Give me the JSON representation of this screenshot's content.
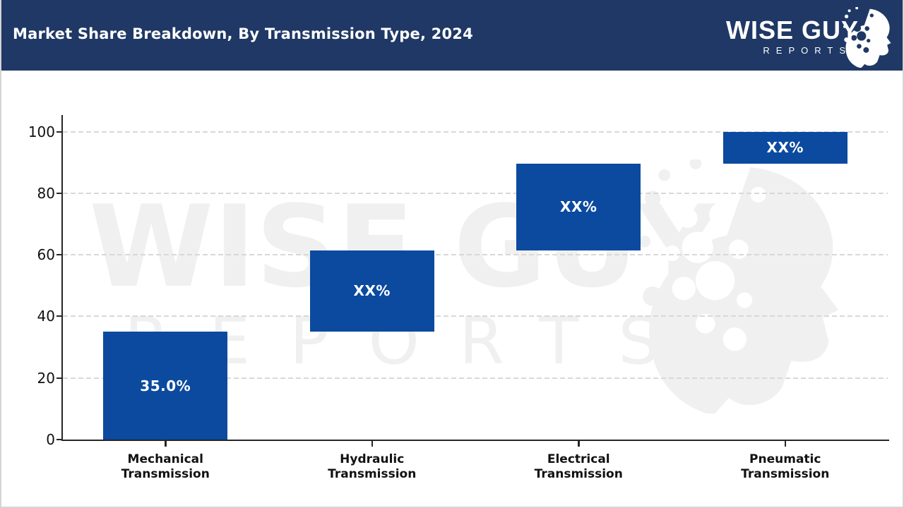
{
  "header": {
    "title": "Market Share Breakdown, By Transmission Type, 2024",
    "logo": {
      "line1": "WISE GUY",
      "line2": "REPORTS"
    }
  },
  "watermark": {
    "line1": "WISE GUY",
    "line2": "REPORTS"
  },
  "colors": {
    "header_bg": "#1f3865",
    "bar": "#0b4a9f",
    "grid": "#d8d8d8",
    "axis": "#262626",
    "bar_label": "#ffffff",
    "watermark": "#f0f0f1",
    "page_border": "#d5d5d5"
  },
  "chart_data": {
    "type": "bar",
    "subtype": "waterfall",
    "title": "Market Share Breakdown, By Transmission Type, 2024",
    "xlabel": "",
    "ylabel": "",
    "ylim": [
      0,
      100
    ],
    "yticks": [
      0,
      20,
      40,
      60,
      80,
      100
    ],
    "grid": "horizontal-dashed",
    "legend": null,
    "categories": [
      "Mechanical\nTransmission",
      "Hydraulic\nTransmission",
      "Electrical\nTransmission",
      "Pneumatic\nTransmission"
    ],
    "segments": [
      {
        "category": "Mechanical Transmission",
        "start": 0,
        "end": 35,
        "label": "35.0%"
      },
      {
        "category": "Hydraulic Transmission",
        "start": 35,
        "end": 61.5,
        "label": "XX%"
      },
      {
        "category": "Electrical Transmission",
        "start": 61.5,
        "end": 89.5,
        "label": "XX%"
      },
      {
        "category": "Pneumatic Transmission",
        "start": 89.5,
        "end": 100,
        "label": "XX%"
      }
    ]
  }
}
